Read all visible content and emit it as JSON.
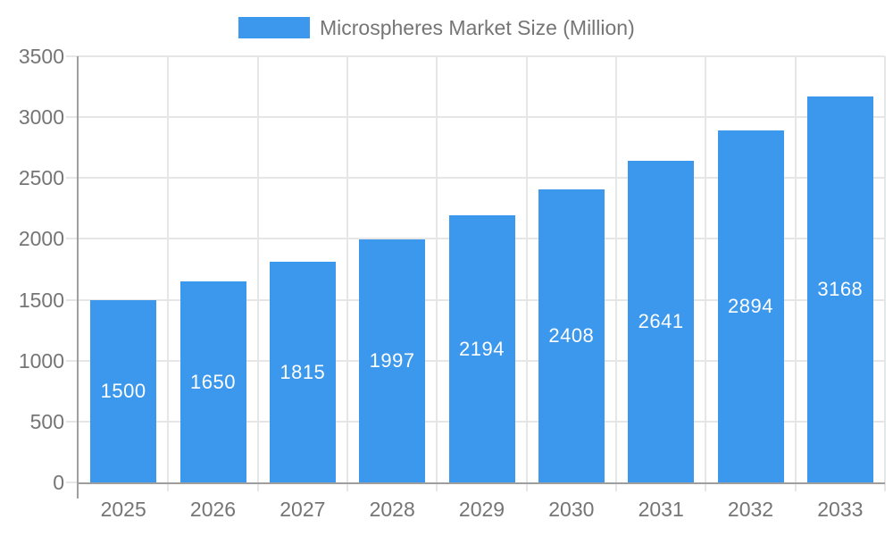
{
  "colors": {
    "bar": "#3B98EC",
    "axis_line": "#9E9E9E",
    "gridline": "#E6E6E6",
    "axis_text": "#757575",
    "bar_label_text": "#FFFFFF",
    "background": "#FFFFFF"
  },
  "legend": {
    "label": "Microspheres Market Size (Million)"
  },
  "chart_data": {
    "type": "bar",
    "title": "Microspheres Market Size (Million)",
    "categories": [
      "2025",
      "2026",
      "2027",
      "2028",
      "2029",
      "2030",
      "2031",
      "2032",
      "2033"
    ],
    "series": [
      {
        "name": "Microspheres Market Size (Million)",
        "values": [
          1500,
          1650,
          1815,
          1997,
          2194,
          2408,
          2641,
          2894,
          3168
        ]
      }
    ],
    "value_labels": [
      "1500",
      "1650",
      "1815",
      "1997",
      "2194",
      "2408",
      "2641",
      "2894",
      "3168"
    ],
    "xlabel": "",
    "ylabel": "",
    "ylim": [
      0,
      3500
    ],
    "yticks": [
      0,
      500,
      1000,
      1500,
      2000,
      2500,
      3000,
      3500
    ],
    "grid": true,
    "legend_position": "top-center",
    "value_labels_inside_bars": true
  }
}
